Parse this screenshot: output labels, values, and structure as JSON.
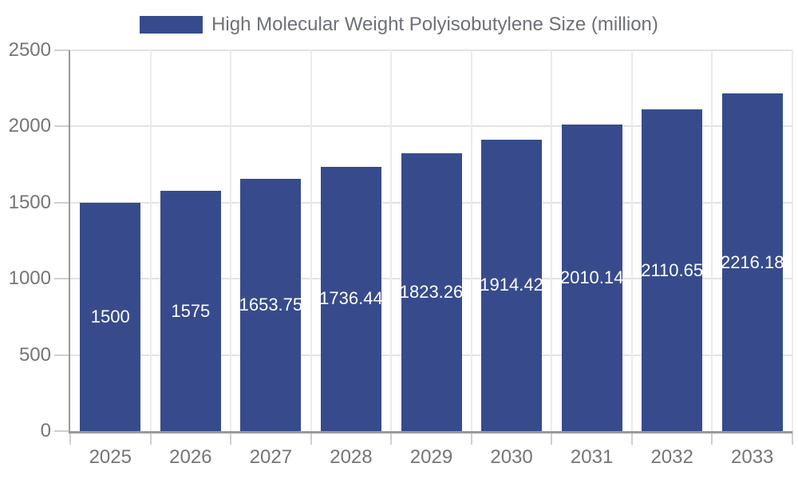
{
  "chart": {
    "colors": {
      "bar": "#374B8C",
      "grid_horizontal": "#E3E3E3",
      "grid_vertical": "#EBEBEB",
      "axis_line": "#9A9A9A",
      "tick": "#CFCFCF",
      "axis_text": "#757575",
      "legend_text": "#6E7079",
      "bar_label_text": "#FFFFFF",
      "background": "#FFFFFF"
    }
  },
  "chart_data": {
    "type": "bar",
    "title": "High Molecular Weight Polyisobutylene Size (million)",
    "categories": [
      "2025",
      "2026",
      "2027",
      "2028",
      "2029",
      "2030",
      "2031",
      "2032",
      "2033"
    ],
    "series": [
      {
        "name": "High Molecular Weight Polyisobutylene Size (million)",
        "values": [
          1500,
          1575,
          1653.75,
          1736.44,
          1823.26,
          1914.42,
          2010.14,
          2110.65,
          2216.18
        ]
      }
    ],
    "value_labels": [
      "1500",
      "1575",
      "1653.75",
      "1736.44",
      "1823.26",
      "1914.42",
      "2010.14",
      "2110.65",
      "2216.18"
    ],
    "xlabel": "",
    "ylabel": "",
    "ylim": [
      0,
      2500
    ],
    "yticks": [
      0,
      500,
      1000,
      1500,
      2000,
      2500
    ],
    "grid": true,
    "legend_position": "top"
  }
}
